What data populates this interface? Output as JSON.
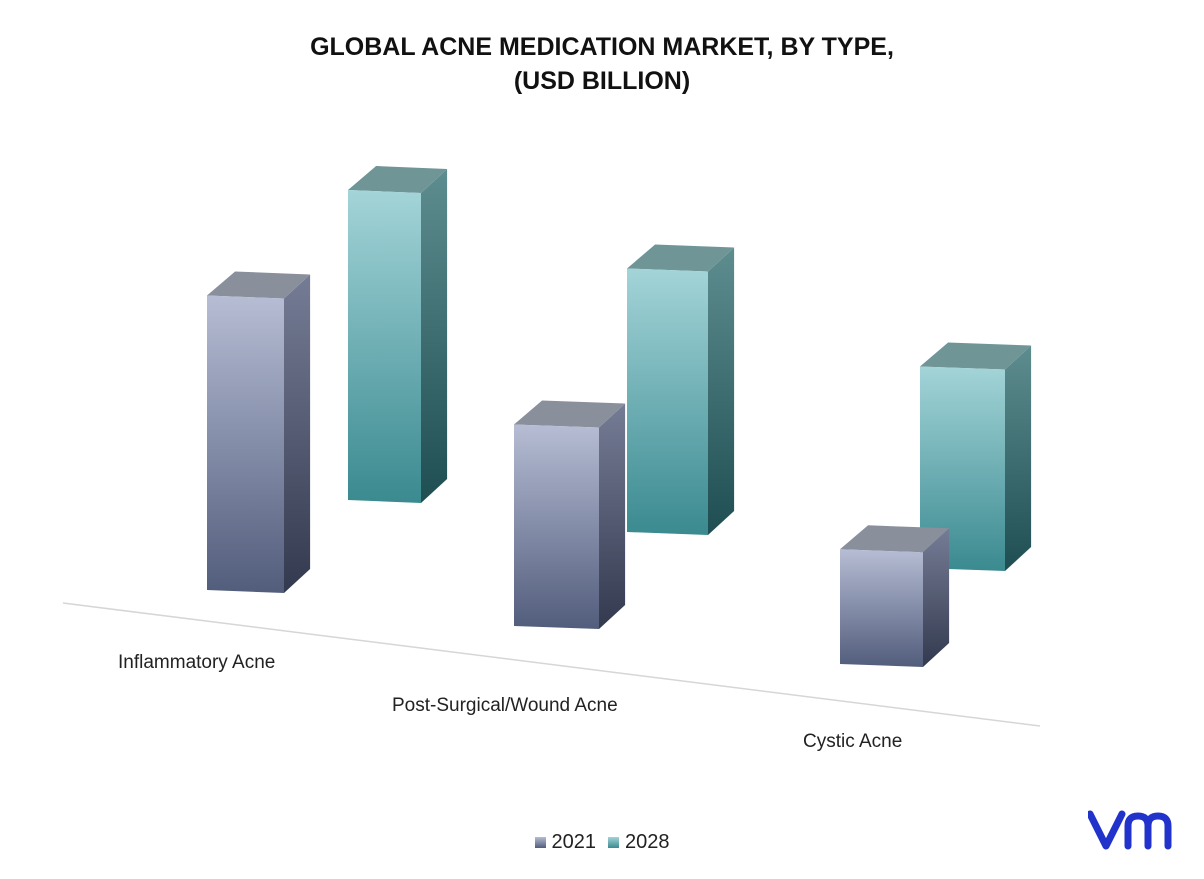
{
  "chart_data": {
    "type": "bar",
    "title_lines": [
      "GLOBAL ACNE MEDICATION MARKET, BY TYPE,",
      "(USD BILLION)"
    ],
    "categories": [
      "Inflammatory Acne",
      "Post-Surgical/Wound Acne",
      "Cystic Acne"
    ],
    "series": [
      {
        "name": "2021",
        "values": [
          9.5,
          6.5,
          3.7
        ]
      },
      {
        "name": "2028",
        "values": [
          10.0,
          8.5,
          6.5
        ]
      }
    ],
    "ylim": [
      0,
      12
    ],
    "grid": false,
    "legend_position": "bottom",
    "series_colors": {
      "2021": {
        "light": "#b6bdd4",
        "dark": "#525d7c",
        "side_top": "#757c95",
        "side_bottom": "#333a4f",
        "top": "#8a8f9c",
        "swatch": "#7e88a6"
      },
      "2028": {
        "light": "#a3d4d8",
        "dark": "#3a8a90",
        "side_top": "#5e8d90",
        "side_bottom": "#1f4e52",
        "top": "#6f9597",
        "swatch": "#4f9da3"
      }
    }
  },
  "logo": {
    "icon": "vmr-logo",
    "color": "#2233cc"
  }
}
